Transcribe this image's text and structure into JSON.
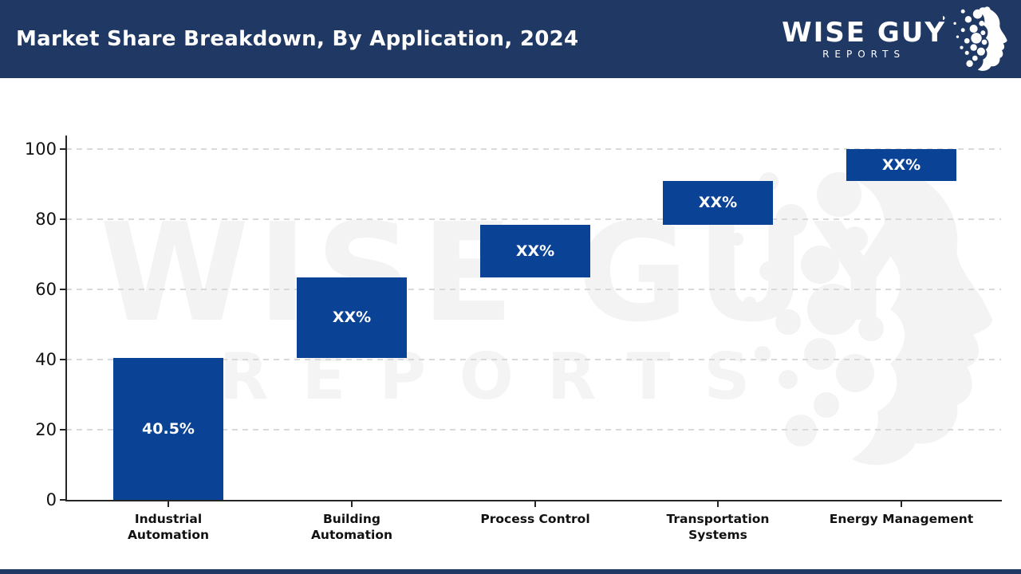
{
  "header": {
    "title": "Market Share Breakdown, By Application, 2024",
    "logo": {
      "name": "WISE GUY",
      "sub": "REPORTS"
    }
  },
  "watermark": {
    "line1": "WISE GUY",
    "line2": "REPORTS"
  },
  "chart_data": {
    "type": "bar",
    "subtype": "floating-waterfall",
    "title": "Market Share Breakdown, By Application, 2024",
    "categories": [
      [
        "Industrial",
        "Automation"
      ],
      [
        "Building",
        "Automation"
      ],
      [
        "Process Control"
      ],
      [
        "Transportation",
        "Systems"
      ],
      [
        "Energy Management"
      ]
    ],
    "segments": [
      {
        "category": "Industrial Automation",
        "start": 0,
        "end": 40.5,
        "label": "40.5%"
      },
      {
        "category": "Building Automation",
        "start": 40.5,
        "end": 63.5,
        "label": "XX%"
      },
      {
        "category": "Process Control",
        "start": 63.5,
        "end": 78.5,
        "label": "XX%"
      },
      {
        "category": "Transportation Systems",
        "start": 78.5,
        "end": 91,
        "label": "XX%"
      },
      {
        "category": "Energy Management",
        "start": 91,
        "end": 100,
        "label": "XX%"
      }
    ],
    "ylim": [
      0,
      100
    ],
    "yticks": [
      0,
      20,
      40,
      60,
      80,
      100
    ],
    "xlabel": "",
    "ylabel": "",
    "grid": {
      "axis": "y",
      "style": "dashed",
      "color": "#d9d9d9"
    },
    "legend": null,
    "colors": {
      "bar": "#0a4296",
      "bar_label": "#ffffff",
      "header_bg": "#1f3864",
      "axis": "#262626",
      "watermark": "#f3f3f3"
    }
  }
}
